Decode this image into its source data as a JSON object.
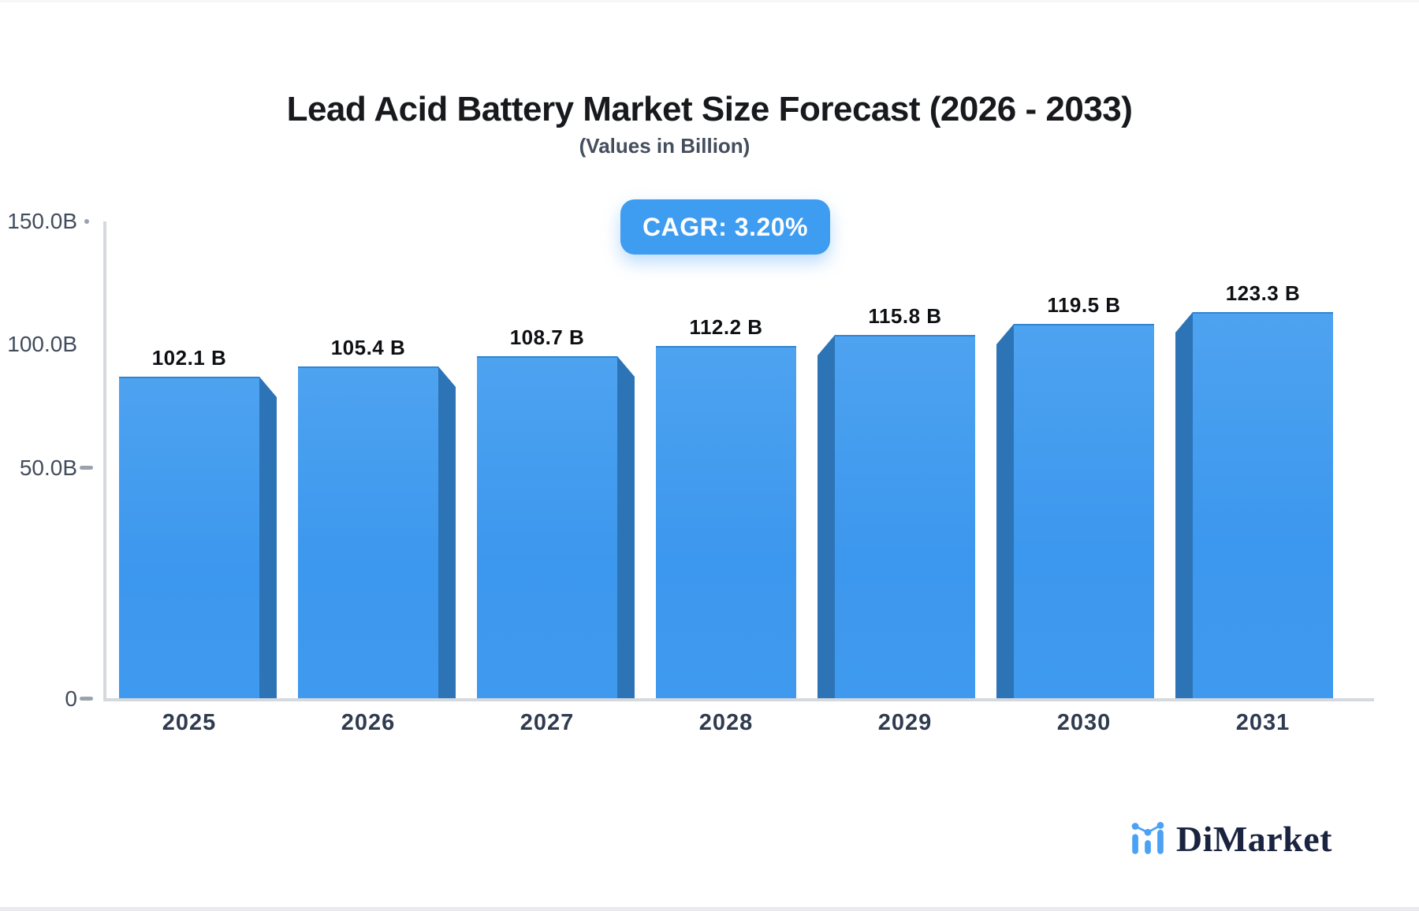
{
  "page": {
    "title": "Lead Acid Battery Market Size Forecast (2026 - 2033)",
    "subtitle": "(Values in Billion)",
    "cagr_badge": "CAGR: 3.20%"
  },
  "chart_data": {
    "type": "bar",
    "title": "Lead Acid Battery Market Size Forecast (2026 - 2033)",
    "subtitle": "(Values in Billion)",
    "cagr": "3.20%",
    "categories": [
      "2025",
      "2026",
      "2027",
      "2028",
      "2029",
      "2030",
      "2031"
    ],
    "values": [
      102.1,
      105.4,
      108.7,
      112.2,
      115.8,
      119.5,
      123.3
    ],
    "value_labels": [
      "102.1 B",
      "105.4 B",
      "108.7 B",
      "112.2 B",
      "115.8 B",
      "119.5 B",
      "123.3 B"
    ],
    "y_ticks": [
      "150.0B",
      "100.0B",
      "50.0B",
      "0"
    ],
    "ylim": [
      0,
      150
    ],
    "xlabel": "",
    "ylabel": "",
    "grid": false,
    "legend": null,
    "style": "3d-beveled-bars",
    "bar_color": "#3f9aef",
    "bar_side_color": "#2d74b6"
  },
  "colors": {
    "badge_bg": "#3e9cf1",
    "badge_text": "#ffffff",
    "axis_line": "#d5d9de",
    "tick": "#9aa2ad",
    "title_text": "#17191d",
    "subtitle_text": "#444e5d",
    "value_label_text": "#0e1013",
    "year_label_text": "#303b4f"
  },
  "branding": {
    "logo_text": "DiMarket",
    "logo_icon": "mini-bar-line-chart-icon",
    "logo_blue": "#4ba1f5",
    "logo_text_color": "#1a2440"
  }
}
